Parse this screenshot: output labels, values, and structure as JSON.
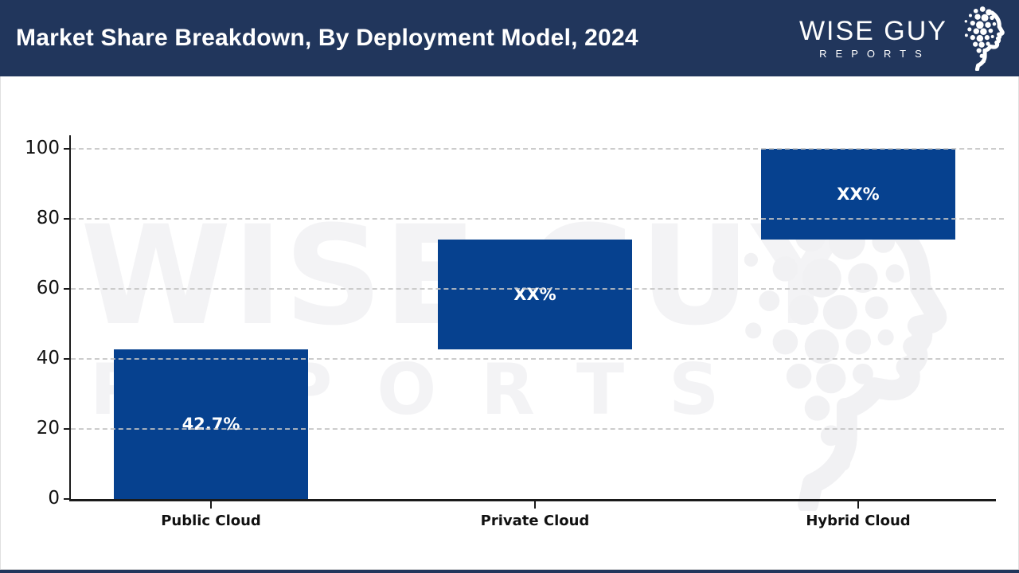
{
  "header": {
    "title": "Market Share Breakdown, By Deployment Model, 2024",
    "logo": {
      "line1": "WISE GUY",
      "line2": "REPORTS"
    }
  },
  "watermark": {
    "line1": "WISE GUY",
    "line2": "REPORTS"
  },
  "chart_data": {
    "type": "bar",
    "subtype": "floating-segment-waterfall",
    "title": "Market Share Breakdown, By Deployment Model, 2024",
    "categories": [
      "Public Cloud",
      "Private Cloud",
      "Hybrid Cloud"
    ],
    "bars": [
      {
        "category": "Public Cloud",
        "start": 0,
        "end": 42.7,
        "label": "42.7%"
      },
      {
        "category": "Private Cloud",
        "start": 42.7,
        "end": 74,
        "label": "XX%"
      },
      {
        "category": "Hybrid Cloud",
        "start": 74,
        "end": 100,
        "label": "XX%"
      }
    ],
    "xlabel": "",
    "ylabel": "",
    "ylim": [
      0,
      100
    ],
    "yticks": [
      0,
      20,
      40,
      60,
      80,
      100
    ],
    "ytick_labels": [
      "0",
      "20",
      "40",
      "60",
      "80",
      "100"
    ],
    "grid": "horizontal-dashed",
    "legend": "none",
    "bar_color": "#06418f",
    "bar_label_color": "#ffffff"
  },
  "colors": {
    "header_bg": "#21365c",
    "footer_bg": "#21365c",
    "bar": "#06418f",
    "gridline": "#c3c3c3",
    "axis": "#1a1a1a",
    "watermark": "#f3f3f5"
  }
}
